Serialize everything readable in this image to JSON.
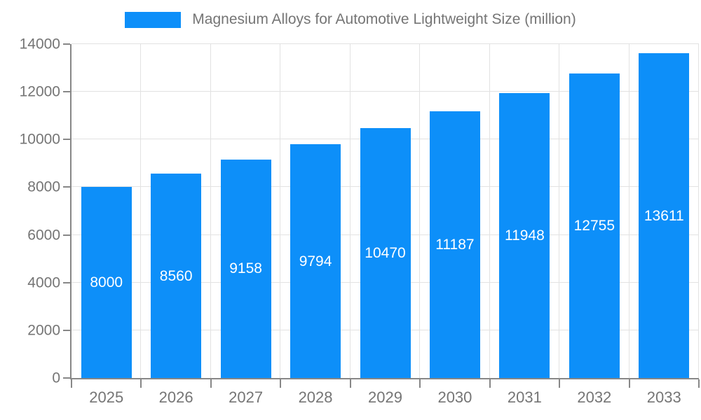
{
  "chart_data": {
    "type": "bar",
    "title": "",
    "legend": [
      "Magnesium Alloys for Automotive Lightweight Size (million)"
    ],
    "legend_position": "top",
    "categories": [
      "2025",
      "2026",
      "2027",
      "2028",
      "2029",
      "2030",
      "2031",
      "2032",
      "2033"
    ],
    "series": [
      {
        "name": "Magnesium Alloys for Automotive Lightweight Size (million)",
        "values": [
          8000,
          8560,
          9158,
          9794,
          10470,
          11187,
          11948,
          12755,
          13611
        ]
      }
    ],
    "value_labels_visible": true,
    "xlabel": "",
    "ylabel": "",
    "ylim": [
      0,
      14000
    ],
    "yticks": [
      0,
      2000,
      4000,
      6000,
      8000,
      10000,
      12000,
      14000
    ],
    "grid": true,
    "colors": {
      "bar": "#0d8ff9",
      "value_label": "#ffffff",
      "axis_text": "#757575",
      "axis_line": "#878787",
      "gridline": "#e2e2e2",
      "background": "#ffffff"
    }
  }
}
